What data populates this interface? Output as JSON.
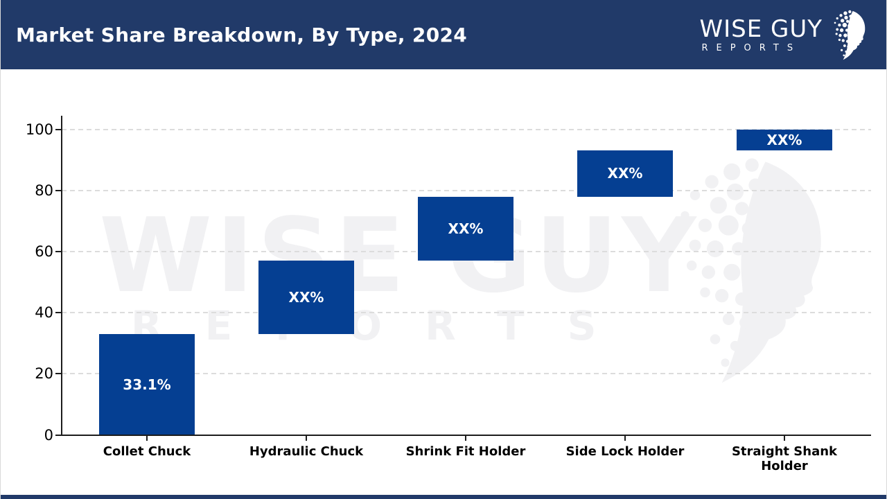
{
  "header": {
    "title": "Market Share Breakdown, By Type, 2024",
    "logo": {
      "line1": "WISE GUY",
      "line2": "REPORTS"
    }
  },
  "watermark": {
    "line1": "WISE GUY",
    "line2": "REPORTS"
  },
  "colors": {
    "header_navy": "#213a69",
    "bar_blue": "#053f92",
    "grid_gray": "#dcdcdc",
    "axis_black": "#1c1c1c",
    "bar_label_white": "#ffffff",
    "watermark_gray": "#f1f1f3"
  },
  "chart_data": {
    "type": "bar",
    "subtype": "waterfall",
    "title": "Market Share Breakdown, By Type, 2024",
    "categories": [
      "Collet Chuck",
      "Hydraulic Chuck",
      "Shrink Fit Holder",
      "Side Lock Holder",
      "Straight Shank Holder"
    ],
    "xtick_labels": [
      "Collet Chuck",
      "Hydraulic Chuck",
      "Shrink Fit Holder",
      "Side Lock Holder",
      "Straight Shank\nHolder"
    ],
    "segments": [
      [
        0,
        33.1
      ],
      [
        33.1,
        57
      ],
      [
        57,
        78
      ],
      [
        78,
        93
      ],
      [
        93,
        100
      ]
    ],
    "values": [
      33.1,
      23.9,
      21,
      15,
      7
    ],
    "bar_labels": [
      "33.1%",
      "XX%",
      "XX%",
      "XX%",
      "XX%"
    ],
    "xlabel": "",
    "ylabel": "",
    "ylim": [
      0,
      100
    ],
    "yticks": [
      0,
      20,
      40,
      60,
      80,
      100
    ],
    "grid": "horizontal-dashed",
    "legend": "none"
  }
}
